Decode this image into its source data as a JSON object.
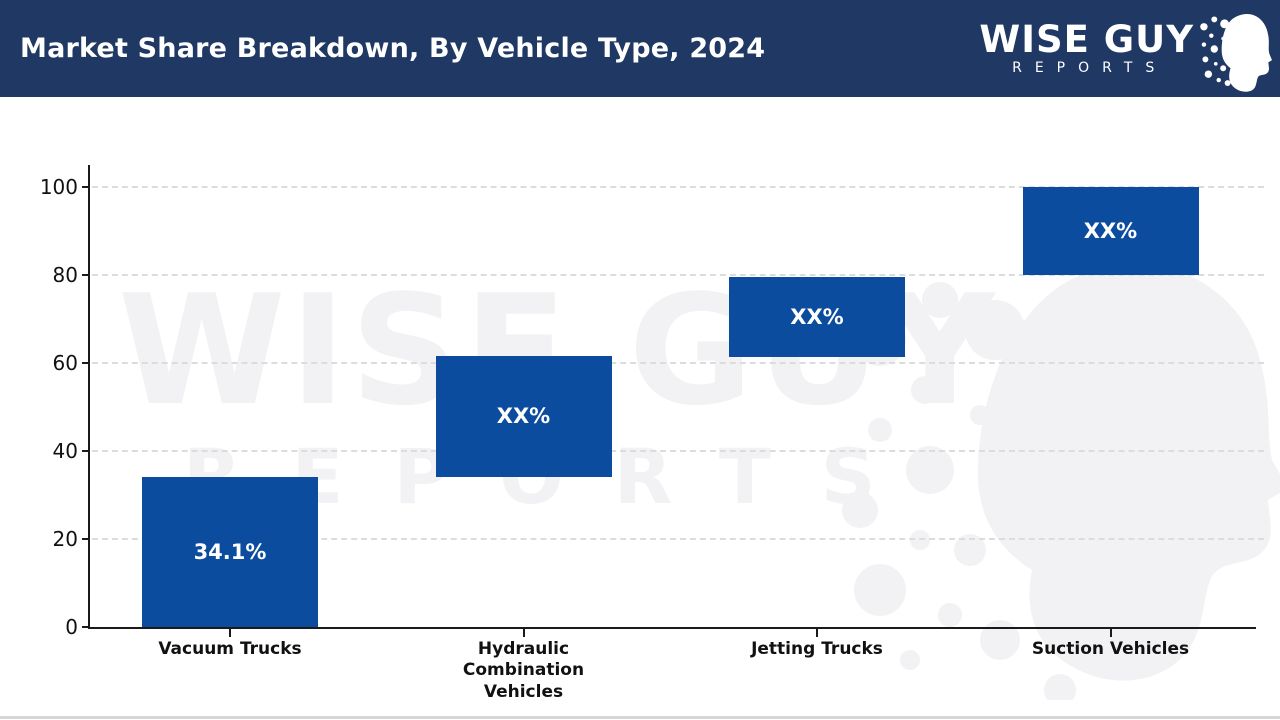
{
  "header": {
    "title": "Market Share Breakdown, By Vehicle Type, 2024",
    "bg_color": "#1f3864",
    "brand": {
      "line1": "WISE GUY",
      "line2": "REPORTS"
    }
  },
  "watermark": {
    "line1": "WISE GUY",
    "line2": "REPORTS"
  },
  "chart_data": {
    "type": "bar",
    "subtype": "waterfall",
    "title": "Market Share Breakdown, By Vehicle Type, 2024",
    "xlabel": "",
    "ylabel": "",
    "ylim": [
      0,
      100
    ],
    "yticks": [
      0,
      20,
      40,
      60,
      80,
      100
    ],
    "grid": "dashed-horizontal",
    "bar_color": "#0c4c9f",
    "categories": [
      "Vacuum Trucks",
      "Hydraulic Combination Vehicles",
      "Jetting Trucks",
      "Suction Vehicles"
    ],
    "category_lines": [
      [
        "Vacuum Trucks"
      ],
      [
        "Hydraulic",
        "Combination",
        "Vehicles"
      ],
      [
        "Jetting Trucks"
      ],
      [
        "Suction Vehicles"
      ]
    ],
    "bars": [
      {
        "category": "Vacuum Trucks",
        "start": 0,
        "end": 34.1,
        "label": "34.1%"
      },
      {
        "category": "Hydraulic Combination Vehicles",
        "start": 34.1,
        "end": 61.6,
        "label": "XX%"
      },
      {
        "category": "Jetting Trucks",
        "start": 61.4,
        "end": 79.5,
        "label": "XX%"
      },
      {
        "category": "Suction Vehicles",
        "start": 80,
        "end": 100,
        "label": "XX%"
      }
    ]
  },
  "footer": {
    "divider_color": "#d6d6d6"
  }
}
